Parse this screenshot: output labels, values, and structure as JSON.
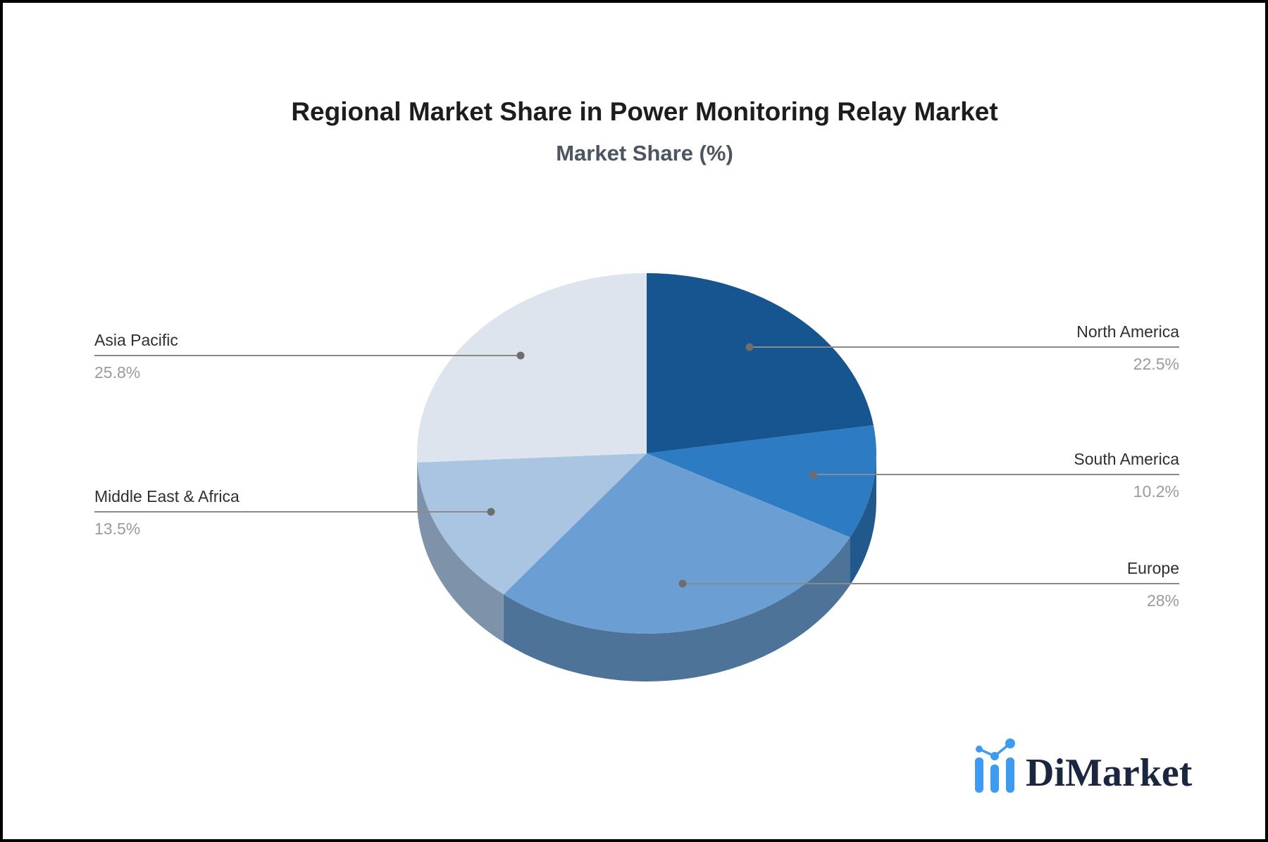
{
  "page": {
    "background": "#ffffff",
    "border_color": "#000000"
  },
  "chart_data": {
    "type": "pie",
    "style": "3d",
    "title": "Regional Market Share in Power Monitoring Relay Market",
    "subtitle": "Market Share (%)",
    "unit": "%",
    "direction": "clockwise",
    "start_angle_deg": 0,
    "legend_position": "none",
    "series": [
      {
        "label": "North America",
        "value": 22.5,
        "display_value": "22.5%",
        "color": "#175591",
        "depth_color": "#10406e"
      },
      {
        "label": "South America",
        "value": 10.2,
        "display_value": "10.2%",
        "color": "#2d7cc3",
        "depth_color": "#22598c"
      },
      {
        "label": "Europe",
        "value": 28,
        "display_value": "28%",
        "color": "#6b9fd4",
        "depth_color": "#4d7399"
      },
      {
        "label": "Middle East & Africa",
        "value": 13.5,
        "display_value": "13.5%",
        "color": "#a9c5e2",
        "depth_color": "#7e93aa"
      },
      {
        "label": "Asia Pacific",
        "value": 25.8,
        "display_value": "25.8%",
        "color": "#dde4ee",
        "depth_color": "#9fafc0"
      }
    ],
    "label_style": {
      "name_color": "#2f2f2f",
      "value_color": "#9b9b9b",
      "line_color": "#8a8a8a",
      "dot_color": "#6e6e6e"
    }
  },
  "logo": {
    "text": "DiMarket",
    "icon": "bar-line-chart-icon",
    "icon_color": "#3f9af2",
    "text_color": "#1b2740"
  }
}
